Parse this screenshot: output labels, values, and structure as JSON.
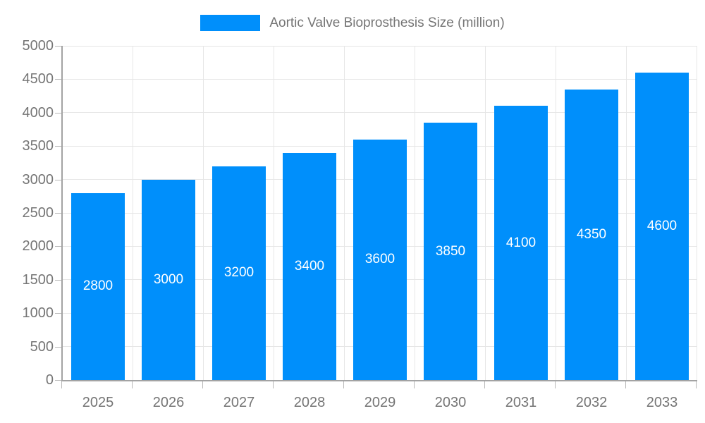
{
  "colors": {
    "bar": "#008FFB",
    "bar_label": "#FFFFFF",
    "axis_text": "#757575",
    "legend_text": "#757575",
    "grid_line": "#E6E6E6",
    "axis_line": "#A3A3A3",
    "tick": "#B8B8B8",
    "background": "#FFFFFF"
  },
  "chart_data": {
    "type": "bar",
    "title": "Aortic Valve Bioprosthesis Size (million)",
    "categories": [
      "2025",
      "2026",
      "2027",
      "2028",
      "2029",
      "2030",
      "2031",
      "2032",
      "2033"
    ],
    "values": [
      2800,
      3000,
      3200,
      3400,
      3600,
      3850,
      4100,
      4350,
      4600
    ],
    "xlabel": "",
    "ylabel": "",
    "ylim": [
      0,
      5000
    ],
    "y_ticks": [
      0,
      500,
      1000,
      1500,
      2000,
      2500,
      3000,
      3500,
      4000,
      4500,
      5000
    ],
    "grid": "on",
    "legend_position": "top",
    "bar_value_labels": "inside-center"
  }
}
